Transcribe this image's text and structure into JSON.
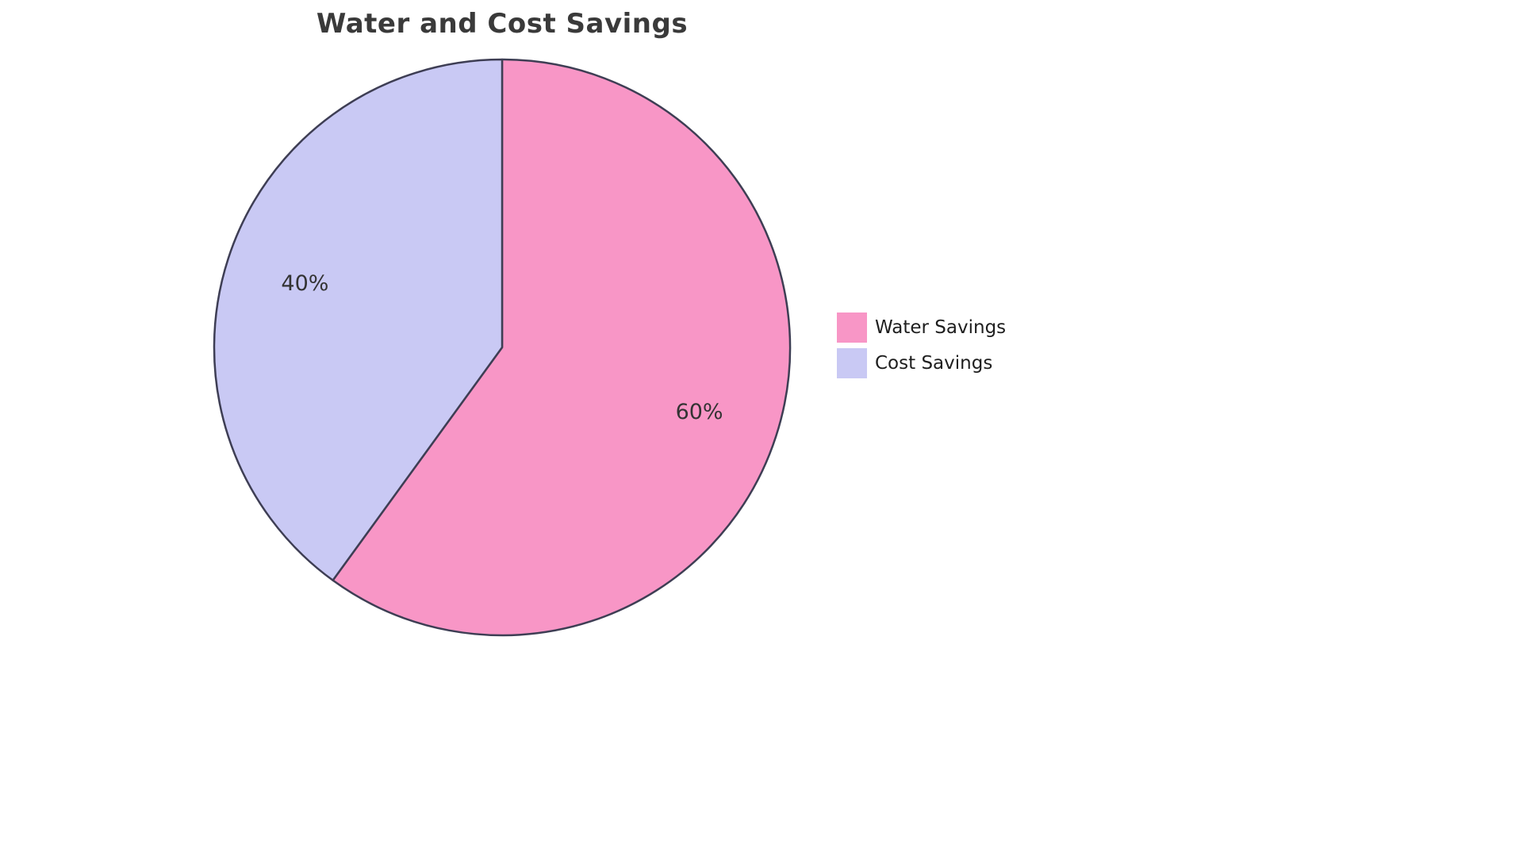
{
  "chart_data": {
    "type": "pie",
    "title": "Water and Cost Savings",
    "slices": [
      {
        "label": "Water Savings",
        "value": 60,
        "display": "60%",
        "color": "#F896C6"
      },
      {
        "label": "Cost Savings",
        "value": 40,
        "display": "40%",
        "color": "#C9C9F4"
      }
    ],
    "start_angle": "12-o-clock",
    "direction": "clockwise",
    "stroke_color": "#3E3E54",
    "stroke_width": 2.5,
    "label_color": "#333333",
    "legend": {
      "position": "right",
      "entries": [
        "Water Savings",
        "Cost Savings"
      ]
    }
  }
}
